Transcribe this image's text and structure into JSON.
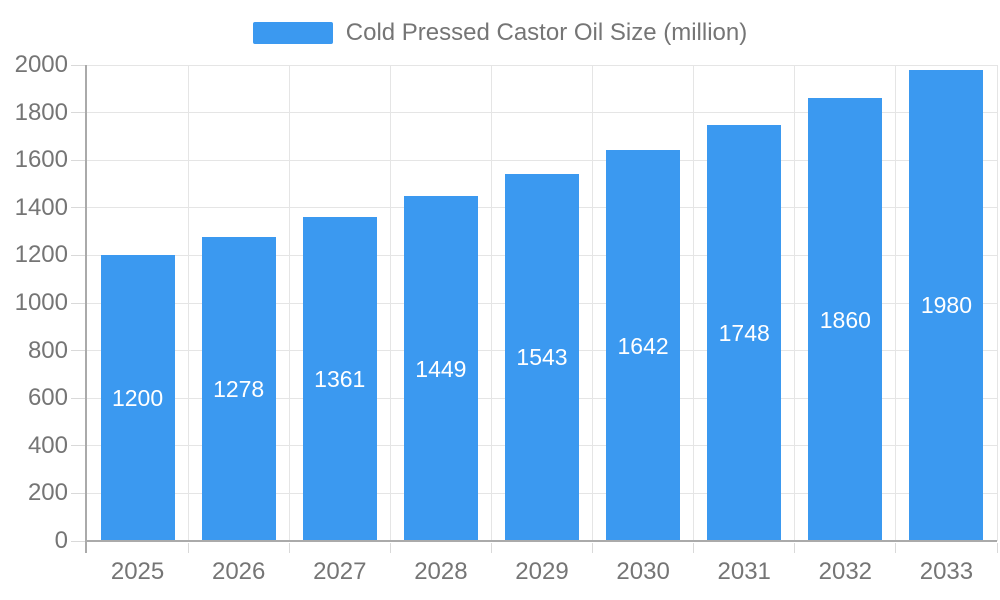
{
  "legend": {
    "label": "Cold Pressed Castor Oil Size (million)"
  },
  "chart_data": {
    "type": "bar",
    "title": "Cold Pressed Castor Oil Size (million)",
    "categories": [
      "2025",
      "2026",
      "2027",
      "2028",
      "2029",
      "2030",
      "2031",
      "2032",
      "2033"
    ],
    "values": [
      1200,
      1278,
      1361,
      1449,
      1543,
      1642,
      1748,
      1860,
      1980
    ],
    "series_name": "Cold Pressed Castor Oil Size (million)",
    "xlabel": "",
    "ylabel": "",
    "ylim": [
      0,
      2000
    ],
    "ytick_step": 200,
    "grid": true,
    "legend_position": "top-center",
    "value_labels": "inside-center",
    "colors": {
      "bar": "#3B99F0",
      "value_label": "#ffffff",
      "axis_text": "#757575",
      "grid": "#e5e5e5",
      "tick": "#d9d9d9",
      "axis_line": "#aaaaaa",
      "background": "#ffffff"
    }
  }
}
